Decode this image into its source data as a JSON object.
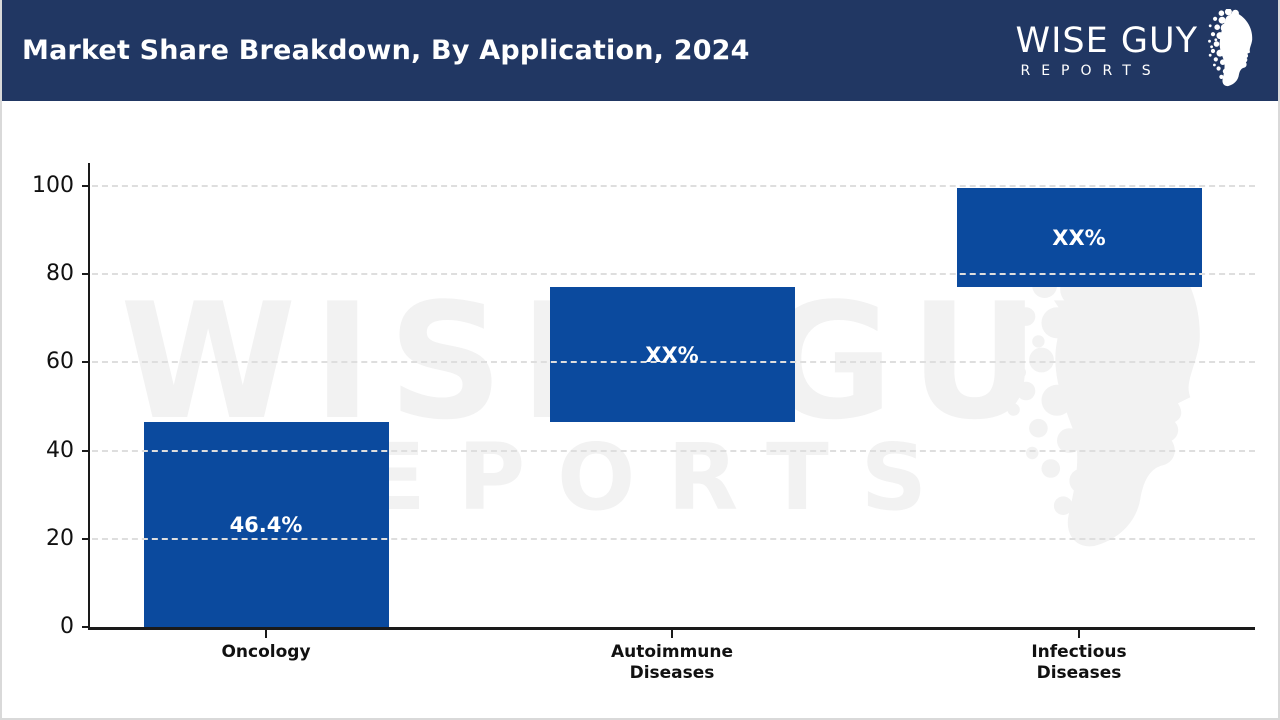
{
  "header": {
    "title": "Market Share Breakdown, By Application, 2024",
    "brand": {
      "line1": "WISE GUY",
      "line2": "REPORTS"
    }
  },
  "watermark": {
    "line1": "WISE GUY",
    "line2": "REPORTS"
  },
  "colors": {
    "header_bg": "#213763",
    "bar": "#0b4a9e",
    "grid": "#dedede",
    "axis": "#1a1a1a",
    "bar_label": "#ffffff",
    "watermark": "#f2f2f2"
  },
  "chart_data": {
    "type": "bar",
    "subtype": "waterfall",
    "title": "Market Share Breakdown, By Application, 2024",
    "categories": [
      "Oncology",
      "Autoimmune Diseases",
      "Infectious Diseases"
    ],
    "segments": [
      {
        "category": "Oncology",
        "start": 0,
        "end": 46.4,
        "label": "46.4%"
      },
      {
        "category": "Autoimmune Diseases",
        "start": 46.4,
        "end": 77,
        "label": "XX%"
      },
      {
        "category": "Infectious Diseases",
        "start": 77,
        "end": 99.5,
        "label": "XX%"
      }
    ],
    "ylim": [
      0,
      100
    ],
    "yticks": [
      0,
      20,
      40,
      60,
      80,
      100
    ],
    "xlabel": "",
    "ylabel": "",
    "grid": "horizontal-dashed-above-bars",
    "legend": "none"
  }
}
